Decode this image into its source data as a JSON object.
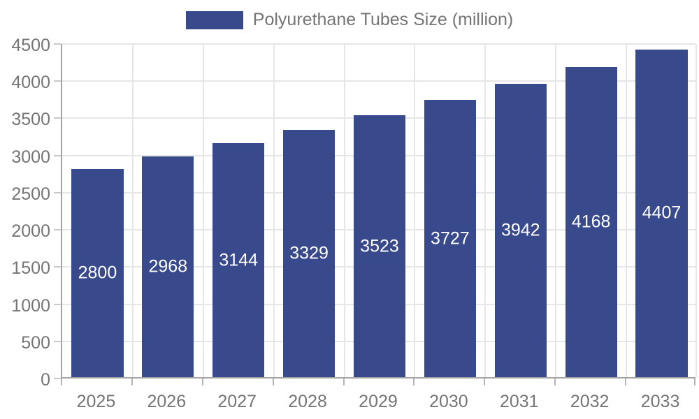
{
  "legend": {
    "label": "Polyurethane Tubes Size (million)"
  },
  "chart_data": {
    "type": "bar",
    "title": "Polyurethane Tubes Size (million)",
    "categories": [
      "2025",
      "2026",
      "2027",
      "2028",
      "2029",
      "2030",
      "2031",
      "2032",
      "2033"
    ],
    "series": [
      {
        "name": "Polyurethane Tubes Size (million)",
        "values": [
          2800,
          2968,
          3144,
          3329,
          3523,
          3727,
          3942,
          4168,
          4407
        ]
      }
    ],
    "xlabel": "",
    "ylabel": "",
    "ylim": [
      0,
      4500
    ],
    "ytick_step": 500,
    "yticks": [
      0,
      500,
      1000,
      1500,
      2000,
      2500,
      3000,
      3500,
      4000,
      4500
    ],
    "grid": true,
    "legend_position": "top",
    "data_labels": "inside-center",
    "colors": {
      "bar": "#394A8C",
      "data_label": "#ffffff",
      "axis_text": "#757575",
      "axis_line": "#a3a3a3",
      "grid_line": "#e6e6e6"
    }
  }
}
